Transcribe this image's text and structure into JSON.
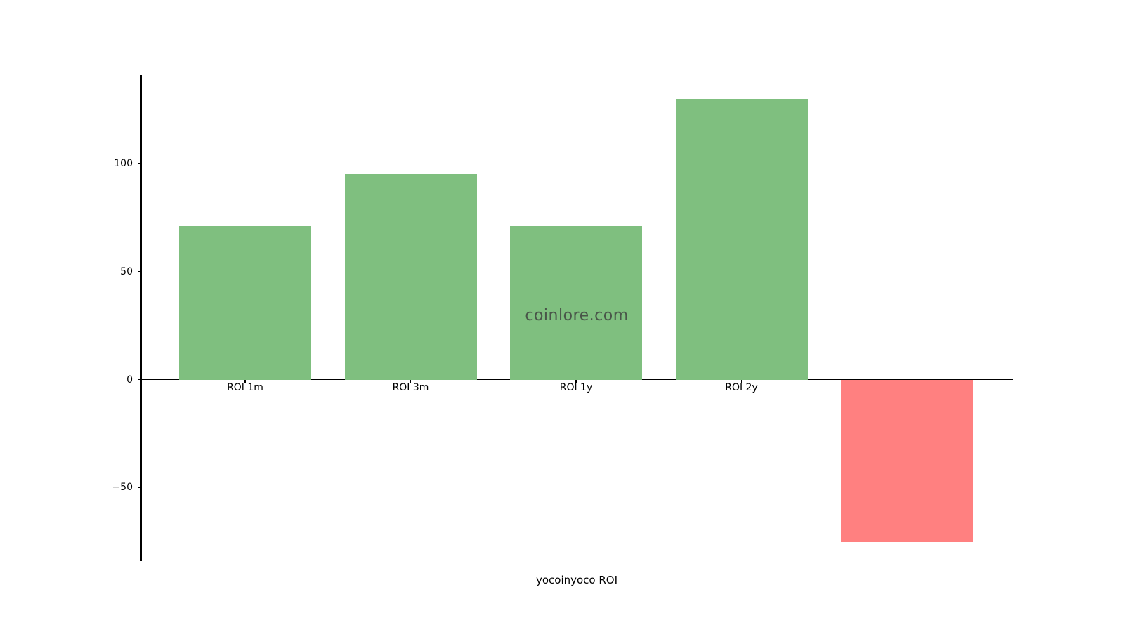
{
  "chart_data": {
    "type": "bar",
    "title": "",
    "xlabel": "yocoinyoco ROI",
    "ylabel": "",
    "watermark": "coinlore.com",
    "categories": [
      "ROI 1m",
      "ROI 3m",
      "ROI 1y",
      "ROI 2y",
      ""
    ],
    "values": [
      71,
      95,
      71,
      130,
      -75
    ],
    "bar_colors": [
      "#7FBF7F",
      "#7FBF7F",
      "#7FBF7F",
      "#7FBF7F",
      "#FF8080"
    ],
    "positive_color": "#7FBF7F",
    "negative_color": "#FF8080",
    "yticks": [
      {
        "value": 100,
        "label": "100"
      },
      {
        "value": 50,
        "label": "50"
      },
      {
        "value": 0,
        "label": "0"
      },
      {
        "value": -50,
        "label": "−50"
      }
    ],
    "ylim": [
      -84,
      141
    ],
    "grid": false,
    "legend": null,
    "axis_color": "#000000",
    "text_color": "#000000"
  }
}
